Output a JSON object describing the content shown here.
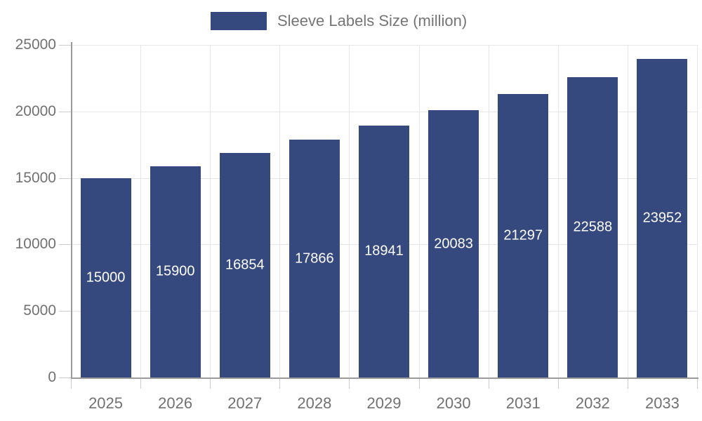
{
  "chart_data": {
    "type": "bar",
    "title": "Sleeve Labels Size (million)",
    "categories": [
      "2025",
      "2026",
      "2027",
      "2028",
      "2029",
      "2030",
      "2031",
      "2032",
      "2033"
    ],
    "values": [
      15000,
      15900,
      16854,
      17866,
      18941,
      20083,
      21297,
      22588,
      23952
    ],
    "series": [
      {
        "name": "Sleeve Labels Size (million)",
        "values": [
          15000,
          15900,
          16854,
          17866,
          18941,
          20083,
          21297,
          22588,
          23952
        ]
      }
    ],
    "xlabel": "",
    "ylabel": "",
    "ylim": [
      0,
      25000
    ],
    "yticks": [
      0,
      5000,
      10000,
      15000,
      20000,
      25000
    ],
    "grid": true,
    "legend_position": "top",
    "bar_value_labels_inside": true,
    "colors": {
      "bar": "#35497e",
      "bar_label_text": "#ffffff",
      "axis_text": "#717171",
      "legend_text": "#757575",
      "gridline": "#e6e6e6",
      "axis_line": "#9b9b9b"
    }
  }
}
